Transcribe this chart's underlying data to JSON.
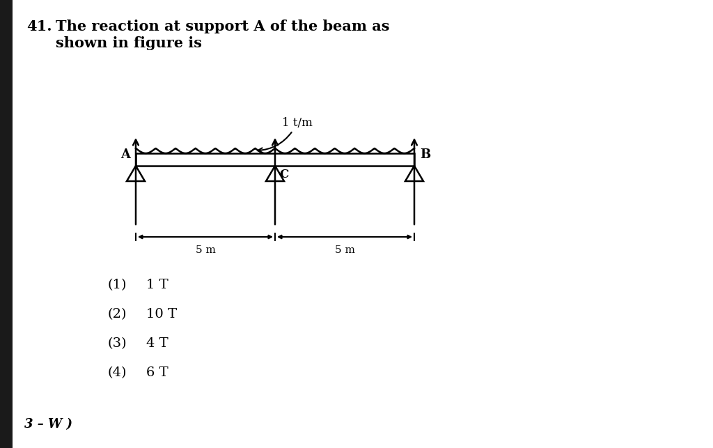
{
  "title_num": "41.",
  "title_text": "The reaction at support A of the beam as\nshown in figure is",
  "load_label": "1 t/m",
  "dim_label_left": "5 m",
  "dim_label_right": "5 m",
  "options_num": [
    "(1)",
    "(2)",
    "(3)",
    "(4)"
  ],
  "options_val": [
    "1 T",
    "10 T",
    "4 T",
    "6 T"
  ],
  "footer": "3 – W )",
  "bg_color": "#ffffff",
  "line_color": "#000000",
  "text_color": "#000000",
  "font_size_title": 15,
  "font_size_options": 14,
  "n_waves": 14,
  "wave_amp": 0.18
}
